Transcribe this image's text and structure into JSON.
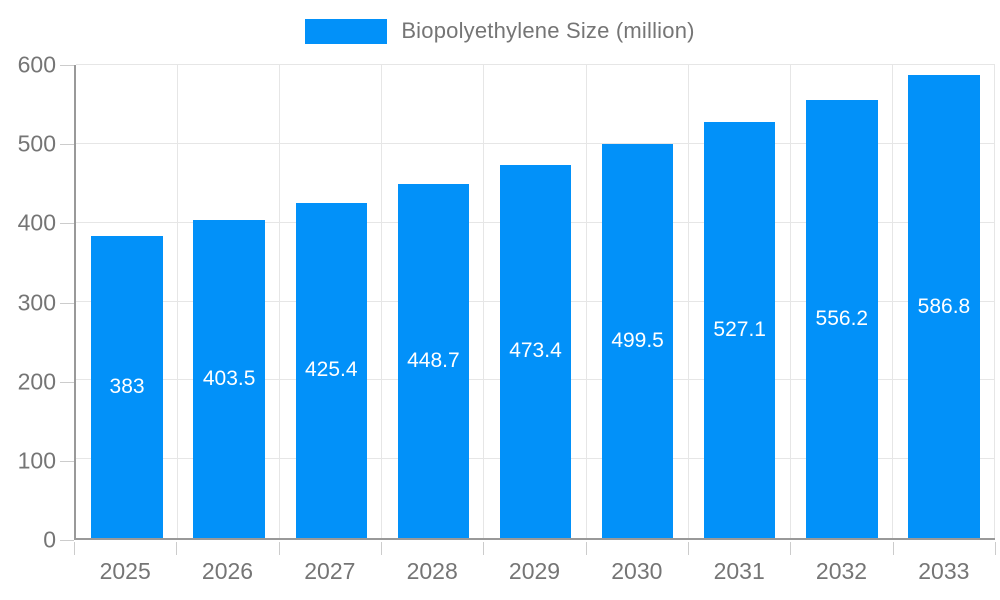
{
  "chart_data": {
    "type": "bar",
    "title": "",
    "legend": "Biopolyethylene Size (million)",
    "legend_position": "top",
    "categories": [
      "2025",
      "2026",
      "2027",
      "2028",
      "2029",
      "2030",
      "2031",
      "2032",
      "2033"
    ],
    "values": [
      383,
      403.5,
      425.4,
      448.7,
      473.4,
      499.5,
      527.1,
      556.2,
      586.8
    ],
    "value_labels": [
      "383",
      "403.5",
      "425.4",
      "448.7",
      "473.4",
      "499.5",
      "527.1",
      "556.2",
      "586.8"
    ],
    "xlabel": "",
    "ylabel": "",
    "ylim": [
      0,
      600
    ],
    "yticks": [
      "0",
      "100",
      "200",
      "300",
      "400",
      "500",
      "600"
    ],
    "grid": true,
    "colors": {
      "bar": "#0291f9",
      "bar_label": "#ffffff",
      "axis_line": "#999999",
      "gridline": "#e6e6e6",
      "tick_mark": "#cccccc",
      "axis_text": "#757575",
      "background": "#ffffff"
    }
  }
}
